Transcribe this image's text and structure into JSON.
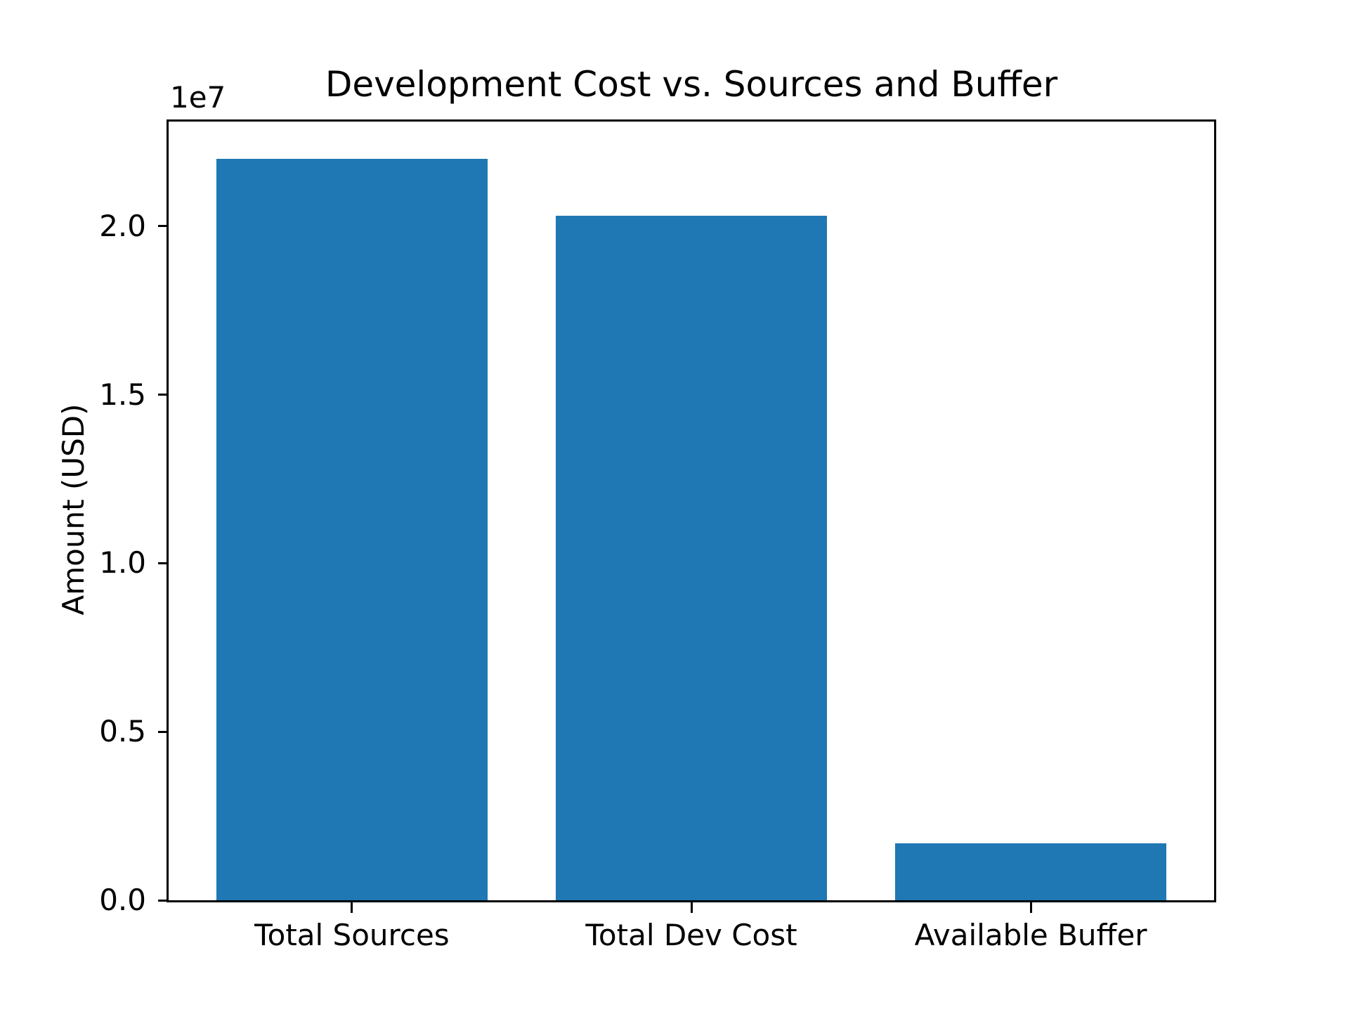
{
  "chart_data": {
    "type": "bar",
    "title": "Development Cost vs. Sources and Buffer",
    "categories": [
      "Total Sources",
      "Total Dev Cost",
      "Available Buffer"
    ],
    "values": [
      22000000,
      20300000,
      1700000
    ],
    "xlabel": "",
    "ylabel": "Amount (USD)",
    "ylim": [
      0,
      23100000
    ],
    "yticks": [
      0,
      5000000,
      10000000,
      15000000,
      20000000
    ],
    "ytick_labels": [
      "0.0",
      "0.5",
      "1.0",
      "1.5",
      "2.0"
    ],
    "offset_text": "1e7",
    "bar_width_fraction": 0.8,
    "grid": false,
    "legend_position": "none"
  },
  "colors": {
    "bar": "#1f77b4",
    "axis": "#000000",
    "text": "#000000",
    "background": "#ffffff"
  }
}
